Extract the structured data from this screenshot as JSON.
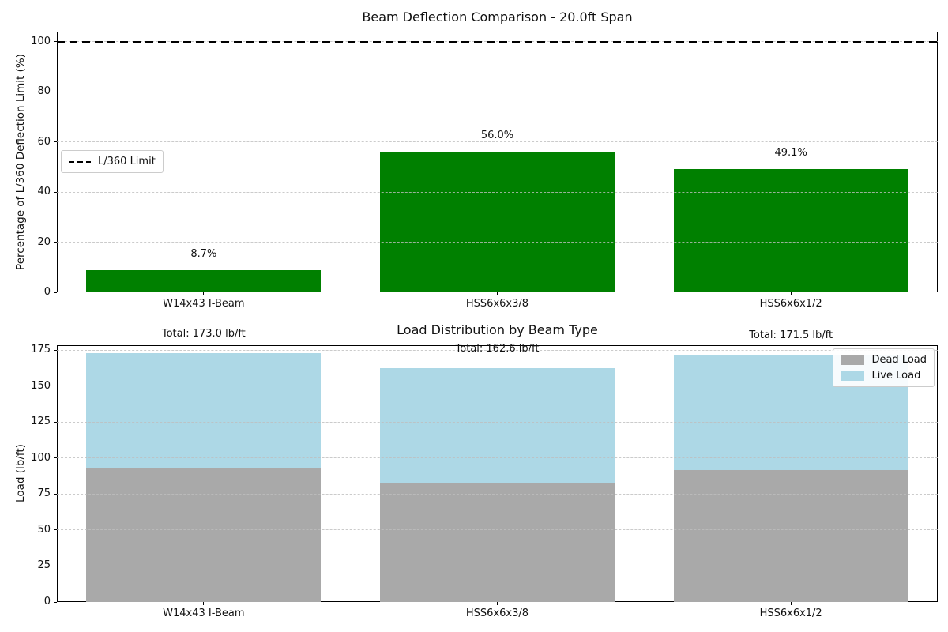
{
  "figure": {
    "background": "#ffffff"
  },
  "chart_data": [
    {
      "type": "bar",
      "title": "Beam Deflection Comparison - 20.0ft Span",
      "xlabel": "",
      "ylabel": "Percentage of L/360 Deflection Limit (%)",
      "categories": [
        "W14x43 I-Beam",
        "HSS6x6x3/8",
        "HSS6x6x1/2"
      ],
      "values": [
        8.7,
        56.0,
        49.1
      ],
      "bar_labels": [
        "8.7%",
        "56.0%",
        "49.1%"
      ],
      "bar_color": "#008000",
      "yticks": [
        0,
        20,
        40,
        60,
        80,
        100
      ],
      "ylim": [
        0,
        104.1
      ],
      "grid": "horizontal-dashed",
      "reference_line": {
        "value": 100,
        "style": "dashed",
        "color": "#000000",
        "label": "L/360 Limit"
      },
      "legend": {
        "position": "center-left",
        "entries": [
          {
            "label": "L/360 Limit",
            "marker": "dashed-line",
            "color": "#000000"
          }
        ]
      }
    },
    {
      "type": "bar-stacked",
      "title": "Load Distribution by Beam Type",
      "xlabel": "",
      "ylabel": "Load (lb/ft)",
      "categories": [
        "W14x43 I-Beam",
        "HSS6x6x3/8",
        "HSS6x6x1/2"
      ],
      "series": [
        {
          "name": "Dead Load",
          "color": "#a9a9a9",
          "values": [
            93.0,
            82.6,
            91.5
          ]
        },
        {
          "name": "Live Load",
          "color": "#add8e6",
          "values": [
            80.0,
            80.0,
            80.0
          ]
        }
      ],
      "totals": [
        "Total: 173.0 lb/ft",
        "Total: 162.6 lb/ft",
        "Total: 171.5 lb/ft"
      ],
      "yticks": [
        0,
        25,
        50,
        75,
        100,
        125,
        150,
        175
      ],
      "ylim": [
        0,
        178.3
      ],
      "grid": "horizontal-dashed",
      "legend": {
        "position": "top-right",
        "entries": [
          {
            "label": "Dead Load",
            "marker": "patch",
            "color": "#a9a9a9"
          },
          {
            "label": "Live Load",
            "marker": "patch",
            "color": "#add8e6"
          }
        ]
      }
    }
  ]
}
